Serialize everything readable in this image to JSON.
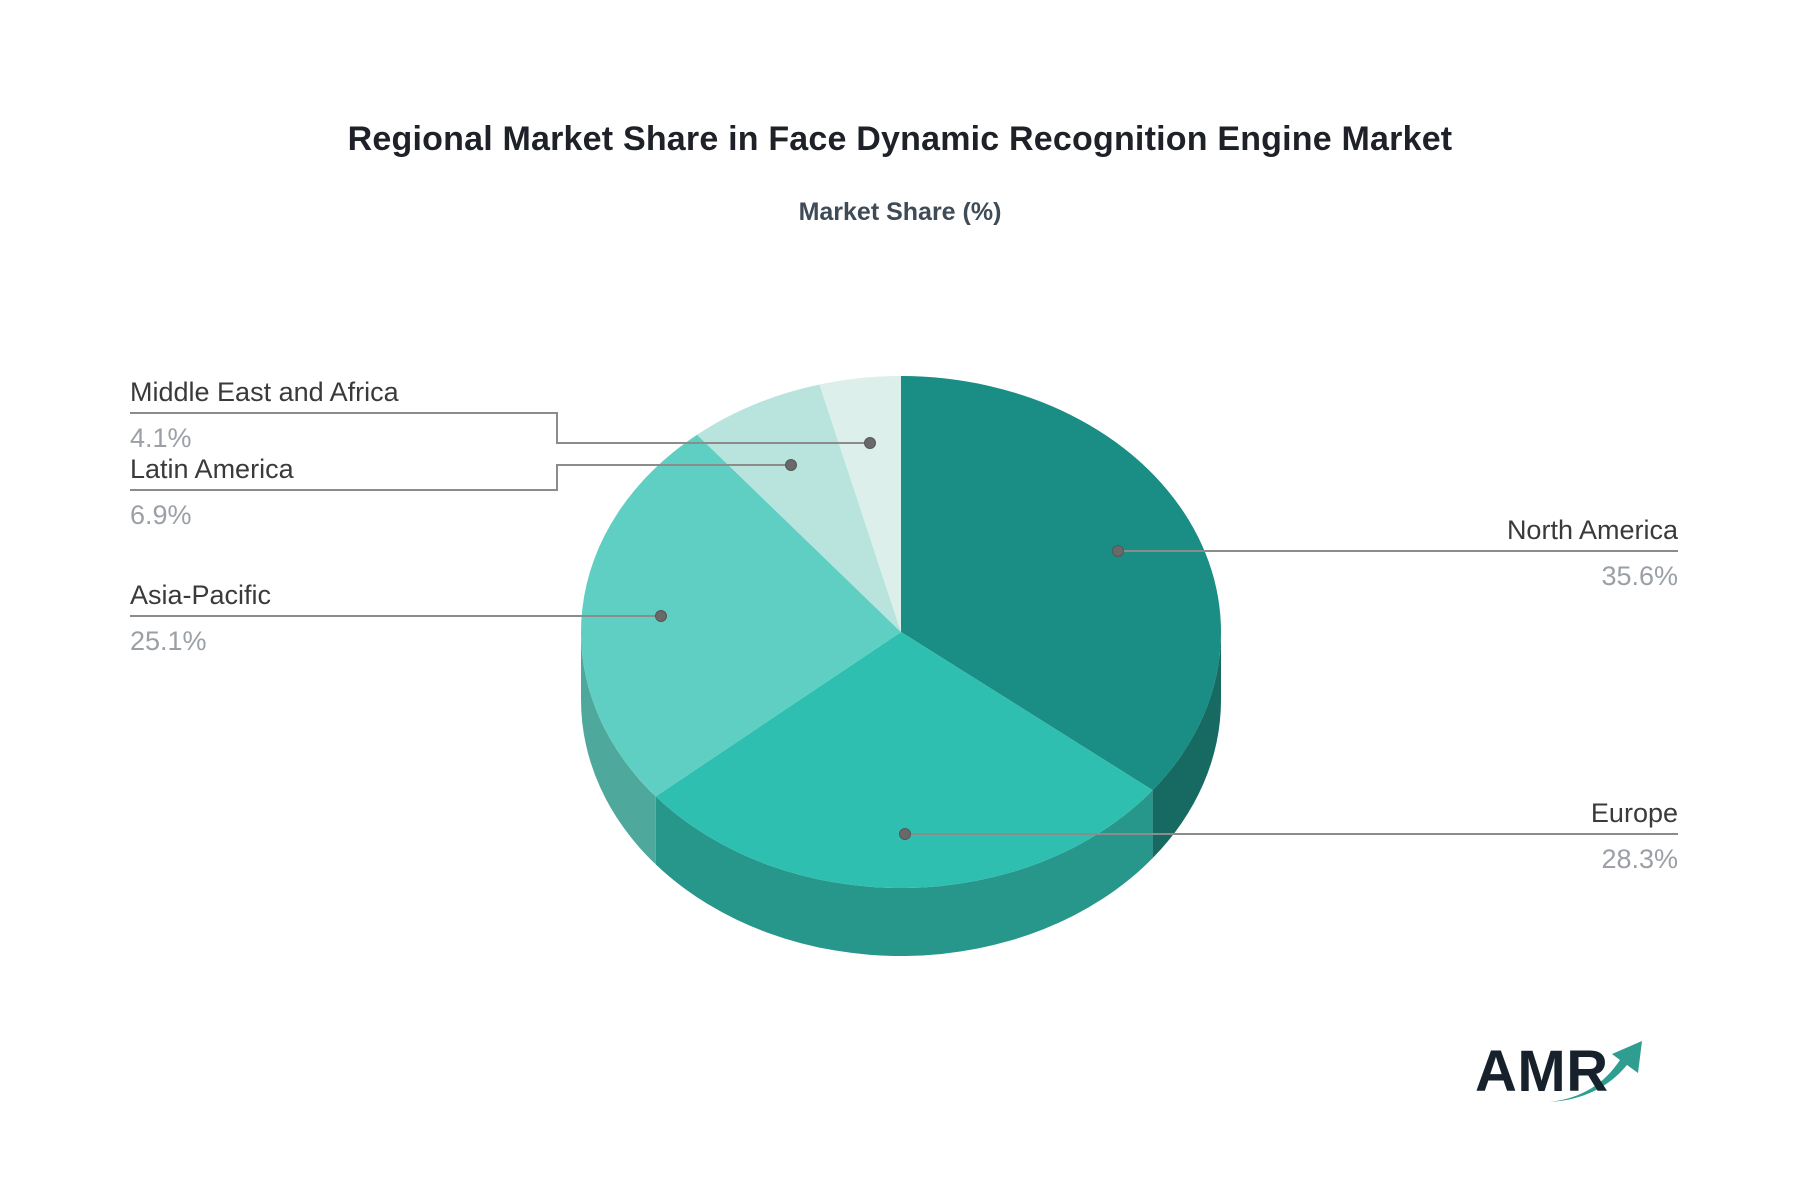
{
  "header": {
    "title": "Regional Market Share in Face Dynamic Recognition Engine Market",
    "subtitle": "Market Share (%)"
  },
  "chart_data": {
    "type": "pie",
    "title": "Regional Market Share in Face Dynamic Recognition Engine Market",
    "subtitle": "Market Share (%)",
    "unit": "%",
    "effect": "3d",
    "start_angle": "12-oclock",
    "direction": "clockwise",
    "legend_position": "callout-labels",
    "categories": [
      "North America",
      "Europe",
      "Asia-Pacific",
      "Latin America",
      "Middle East and Africa"
    ],
    "values": [
      35.6,
      28.3,
      25.1,
      6.9,
      4.1
    ],
    "slices": [
      {
        "label": "North America",
        "value": 35.6,
        "display": "35.6%",
        "color": "#1a8d84",
        "side_color": "#166a62"
      },
      {
        "label": "Europe",
        "value": 28.3,
        "display": "28.3%",
        "color": "#2ebfb1",
        "side_color": "#27968b"
      },
      {
        "label": "Asia-Pacific",
        "value": 25.1,
        "display": "25.1%",
        "color": "#60cfc3",
        "side_color": "#4fa89c"
      },
      {
        "label": "Latin America",
        "value": 6.9,
        "display": "6.9%",
        "color": "#b9e4dd",
        "side_color": "#93c4bc"
      },
      {
        "label": "Middle East and Africa",
        "value": 4.1,
        "display": "4.1%",
        "color": "#dcefeb",
        "side_color": "#b5d6d0"
      }
    ],
    "leader_line_color": "#8c8c8c",
    "leader_dot_color": "#696969"
  },
  "logo": {
    "text": "AMR",
    "text_color": "#16212c",
    "arrow_color": "#2f9e90"
  }
}
